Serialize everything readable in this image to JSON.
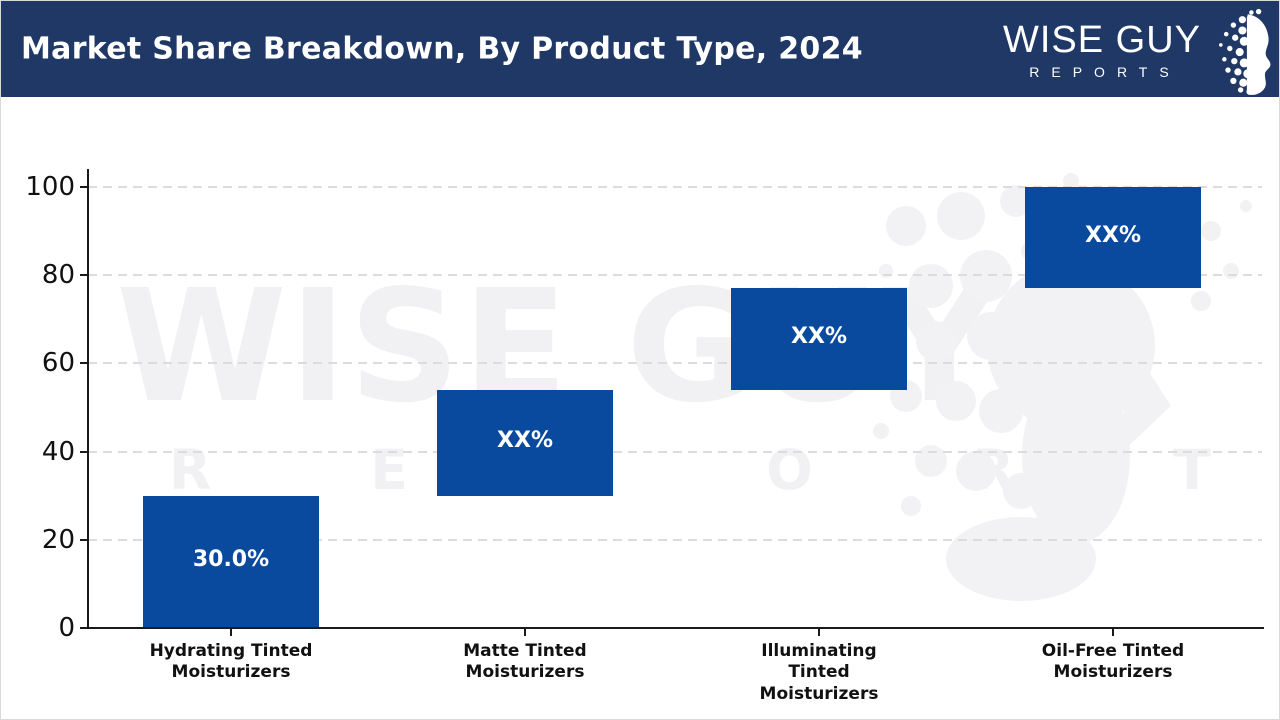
{
  "header": {
    "title": "Market Share Breakdown, By Product Type, 2024",
    "background_color": "#1f3866",
    "logo": {
      "name_top": "WISE GUY",
      "name_bottom": "REPORTS"
    }
  },
  "watermark": {
    "big_text": "WISE GUY",
    "small_text": "REPORTS"
  },
  "chart_data": {
    "type": "bar",
    "variant": "floating-waterfall",
    "title": "Market Share Breakdown, By Product Type, 2024",
    "categories": [
      "Hydrating Tinted Moisturizers",
      "Matte Tinted Moisturizers",
      "Illuminating Tinted Moisturizers",
      "Oil-Free Tinted Moisturizers"
    ],
    "category_label_lines": [
      [
        "Hydrating Tinted",
        "Moisturizers"
      ],
      [
        "Matte Tinted",
        "Moisturizers"
      ],
      [
        "Illuminating",
        "Tinted",
        "Moisturizers"
      ],
      [
        "Oil-Free Tinted",
        "Moisturizers"
      ]
    ],
    "series": [
      {
        "name": "Market share (%)",
        "segments": [
          {
            "category": "Hydrating Tinted Moisturizers",
            "start": 0,
            "end": 30,
            "label": "30.0%"
          },
          {
            "category": "Matte Tinted Moisturizers",
            "start": 30,
            "end": 54,
            "label": "XX%"
          },
          {
            "category": "Illuminating Tinted Moisturizers",
            "start": 54,
            "end": 77,
            "label": "XX%"
          },
          {
            "category": "Oil-Free Tinted Moisturizers",
            "start": 77,
            "end": 100,
            "label": "XX%"
          }
        ]
      }
    ],
    "xlabel": "",
    "ylabel": "",
    "ylim": [
      0,
      100
    ],
    "yticks": [
      0,
      20,
      40,
      60,
      80,
      100
    ],
    "grid": "dashed-horizontal",
    "legend": "none",
    "bar_color": "#0a4a9e",
    "bar_label_color": "#ffffff"
  }
}
